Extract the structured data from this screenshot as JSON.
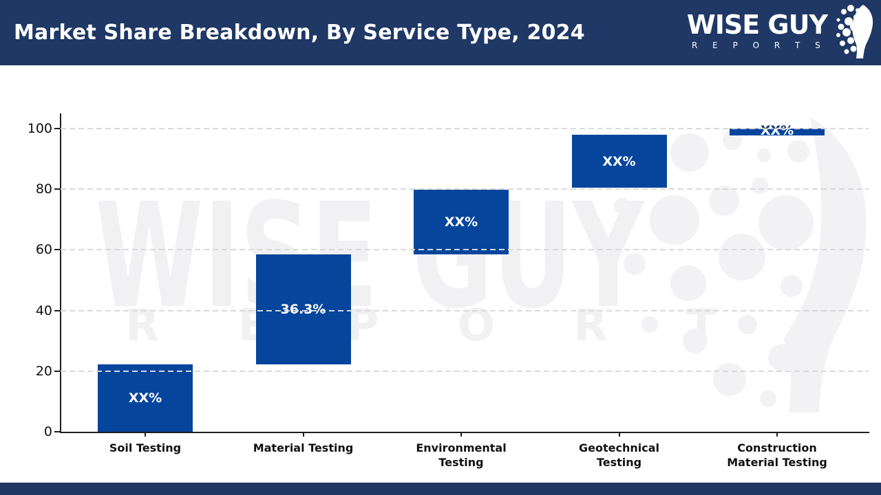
{
  "header": {
    "title": "Market Share Breakdown, By Service Type, 2024",
    "logo_line1": "WISE GUY",
    "logo_line2": "R E P O R T S"
  },
  "watermark": {
    "line1": "WISE GUY",
    "line2": "R E P O R T S"
  },
  "colors": {
    "header_bg": "#1f3865",
    "footer_bg": "#1f3865",
    "title_text": "#ffffff",
    "bar": "#06459c",
    "bar_label": "#ffffff",
    "outside_label": "#173567",
    "gridline": "#d9d9d9",
    "axis": "#1c1c1c",
    "watermark": "#f1f1f4"
  },
  "chart_data": {
    "type": "bar",
    "subtype": "waterfall",
    "title": "Market Share Breakdown, By Service Type, 2024",
    "xlabel": "",
    "ylabel": "",
    "categories": [
      "Soil Testing",
      "Material Testing",
      "Environmental Testing",
      "Geotechnical Testing",
      "Construction Material Testing"
    ],
    "category_label_lines": [
      [
        "Soil Testing"
      ],
      [
        "Material Testing"
      ],
      [
        "Environmental",
        "Testing"
      ],
      [
        "Geotechnical",
        "Testing"
      ],
      [
        "Construction",
        "Material Testing"
      ]
    ],
    "segments": [
      {
        "category": "Soil Testing",
        "start": 0,
        "end": 22.3,
        "label": "XX%"
      },
      {
        "category": "Material Testing",
        "start": 22.3,
        "end": 58.6,
        "label": "36.3%"
      },
      {
        "category": "Environmental Testing",
        "start": 58.6,
        "end": 79.8,
        "label": "XX%"
      },
      {
        "category": "Geotechnical Testing",
        "start": 80.4,
        "end": 98,
        "label": "XX%"
      },
      {
        "category": "Construction Material Testing",
        "start": 97.8,
        "end": 100,
        "label": "XX%"
      }
    ],
    "yticks": [
      0,
      20,
      40,
      60,
      80,
      100
    ],
    "ylim": [
      0,
      105
    ],
    "grid": "horizontal-dashed",
    "legend": "none"
  }
}
